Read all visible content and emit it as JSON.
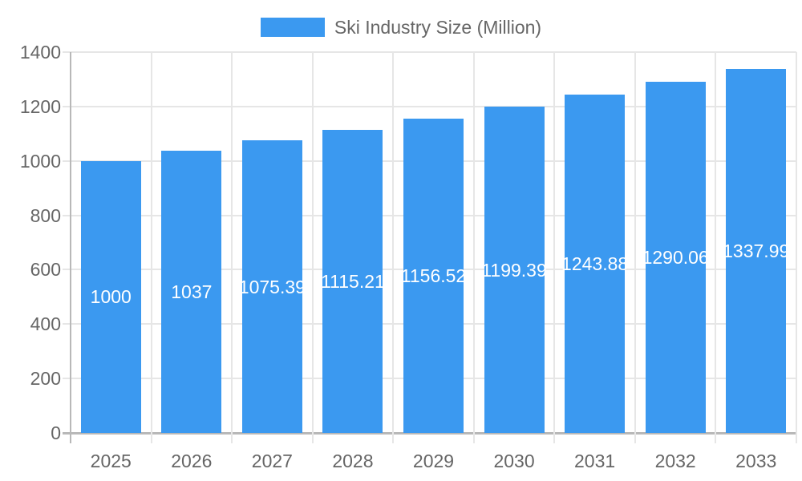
{
  "legend": {
    "label": "Ski Industry Size (Million)",
    "swatch_icon": "series-color-swatch"
  },
  "chart_data": {
    "type": "bar",
    "title": "Ski Industry Size (Million)",
    "categories": [
      "2025",
      "2026",
      "2027",
      "2028",
      "2029",
      "2030",
      "2031",
      "2032",
      "2033"
    ],
    "values": [
      1000,
      1037,
      1075.39,
      1115.21,
      1156.52,
      1199.39,
      1243.88,
      1290.06,
      1337.99
    ],
    "bar_labels": [
      "1000",
      "1037",
      "1075.39",
      "1115.21",
      "1156.52",
      "1199.39",
      "1243.88",
      "1290.06",
      "1337.99"
    ],
    "series": [
      {
        "name": "Ski Industry Size (Million)",
        "values": [
          1000,
          1037,
          1075.39,
          1115.21,
          1156.52,
          1199.39,
          1243.88,
          1290.06,
          1337.99
        ]
      }
    ],
    "xlabel": "",
    "ylabel": "",
    "ylim": [
      0,
      1400
    ],
    "yticks": [
      0,
      200,
      400,
      600,
      800,
      1000,
      1200,
      1400
    ],
    "grid": true,
    "value_labels_position": "inside-center",
    "legend_position": "top-center",
    "colors": {
      "bar": "#3B99F0",
      "grid_light": "#E6E6E6",
      "grid_dark": "#B8B8B8",
      "axis_text": "#666666",
      "value_label_text": "#FFFFFF",
      "background": "#FFFFFF"
    }
  }
}
